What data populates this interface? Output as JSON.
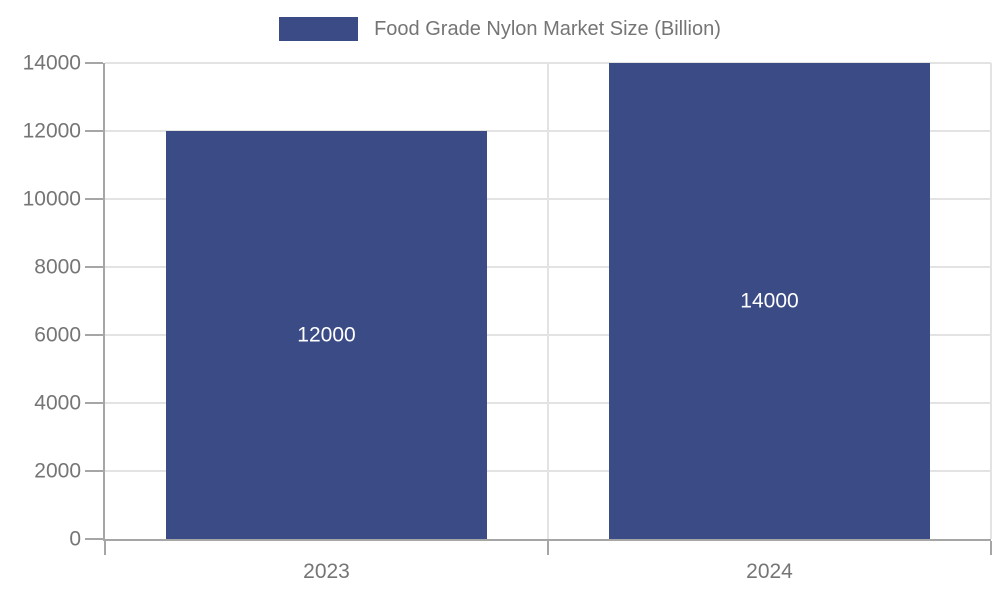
{
  "legend": {
    "series_label": "Food Grade Nylon Market Size (Billion)"
  },
  "chart_data": {
    "type": "bar",
    "categories": [
      "2023",
      "2024"
    ],
    "values": [
      12000,
      14000
    ],
    "bar_labels": [
      "12000",
      "14000"
    ],
    "title": "",
    "xlabel": "",
    "ylabel": "",
    "ylim": [
      0,
      14000
    ],
    "ytick_step": 2000,
    "ytick_labels": [
      "0",
      "2000",
      "4000",
      "6000",
      "8000",
      "10000",
      "12000",
      "14000"
    ],
    "grid": true,
    "legend_position": "top-center",
    "legend_entries": [
      "Food Grade Nylon Market Size (Billion)"
    ],
    "colors": {
      "bar": "#3A4B85",
      "bar_value_label": "#FFFFFF",
      "axis_line": "#A6A6A6",
      "gridline": "#E3E3E3",
      "tick_label": "#757575",
      "legend_text": "#757575",
      "background": "#FFFFFF"
    }
  }
}
